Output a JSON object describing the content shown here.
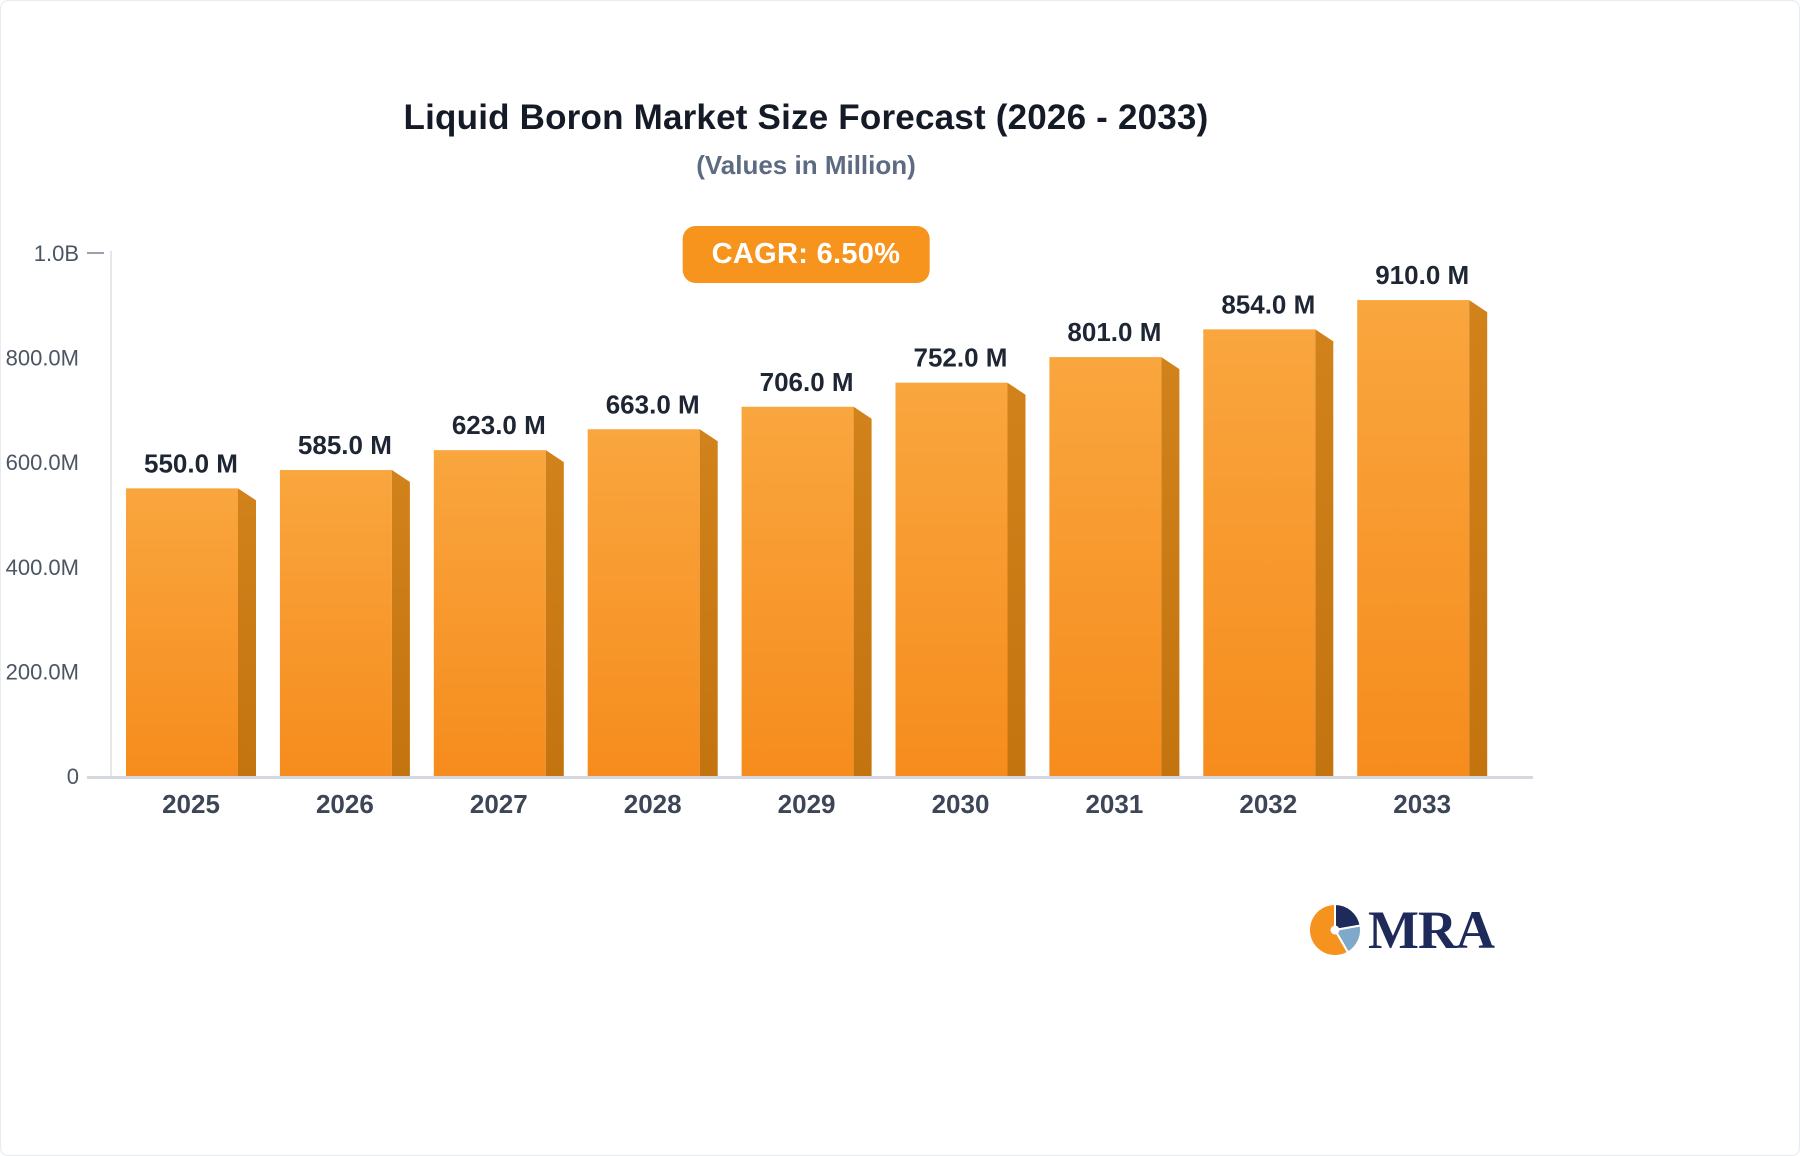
{
  "badge": {
    "label": "CAGR: 6.50%"
  },
  "logo": {
    "text": "MRA"
  },
  "colors": {
    "badge_bg": "#f7941e",
    "bar_front_top": "#f9a63e",
    "bar_front_bottom": "#f68c1d",
    "bar_side_top": "#d2821a",
    "bar_side_bottom": "#c3740f",
    "axis_line": "#e4e7eb",
    "baseline": "#d5d9df",
    "logo_orange": "#f6921e",
    "logo_navy": "#1e2a5a",
    "logo_blue": "#7fa8c9"
  },
  "chart_data": {
    "type": "bar",
    "title": "Liquid Boron Market Size Forecast (2026 - 2033)",
    "subtitle": "(Values in Million)",
    "annotation": "CAGR: 6.50%",
    "units": "Million",
    "categories": [
      "2025",
      "2026",
      "2027",
      "2028",
      "2029",
      "2030",
      "2031",
      "2032",
      "2033"
    ],
    "values": [
      550,
      585,
      623,
      663,
      706,
      752,
      801,
      854,
      910
    ],
    "value_labels": [
      "550.0 M",
      "585.0 M",
      "623.0 M",
      "663.0 M",
      "706.0 M",
      "752.0 M",
      "801.0 M",
      "854.0 M",
      "910.0 M"
    ],
    "y_ticks": [
      {
        "value": 0,
        "label": "0"
      },
      {
        "value": 200,
        "label": "200.0M"
      },
      {
        "value": 400,
        "label": "400.0M"
      },
      {
        "value": 600,
        "label": "600.0M"
      },
      {
        "value": 800,
        "label": "800.0M"
      },
      {
        "value": 1000,
        "label": "1.0B"
      }
    ],
    "ylim": [
      0,
      1000
    ],
    "xlabel": "",
    "ylabel": "",
    "grid": false,
    "legend": "none",
    "bar_colors": {
      "front_top": "#f9a63e",
      "front_bottom": "#f68c1d",
      "side_top": "#d2821a",
      "side_bottom": "#c3740f"
    }
  }
}
